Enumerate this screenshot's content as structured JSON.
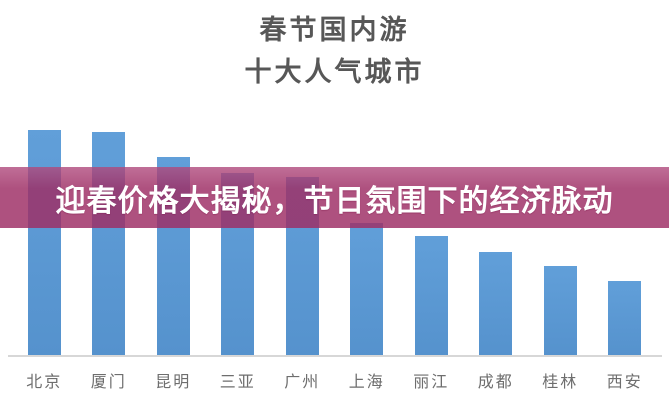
{
  "title": {
    "line1": "春节国内游",
    "line2": "十大人气城市",
    "color": "#575757"
  },
  "banner": {
    "text": "迎春价格大揭秘，节日氛围下的经济脉动",
    "bg_color": "#9e2e65",
    "text_color": "#ffffff"
  },
  "chart_data": {
    "type": "bar",
    "title": "春节国内游 十大人气城市",
    "categories": [
      "北京",
      "厦门",
      "昆明",
      "三亚",
      "广州",
      "上海",
      "丽江",
      "成都",
      "桂林",
      "西安"
    ],
    "values": [
      100,
      99,
      88,
      81,
      79,
      59,
      53,
      46,
      40,
      33
    ],
    "values_note": "relative popularity index estimated from bar heights, Beijing = 100 (no numeric axis shown in image)",
    "xlabel": "",
    "ylabel": "",
    "ylim": [
      0,
      100
    ],
    "grid": false,
    "legend": "none",
    "bar_color": "#5B94D0",
    "axis_line_color": "#d7d7d7",
    "tick_label_color": "#6e6e6e"
  }
}
